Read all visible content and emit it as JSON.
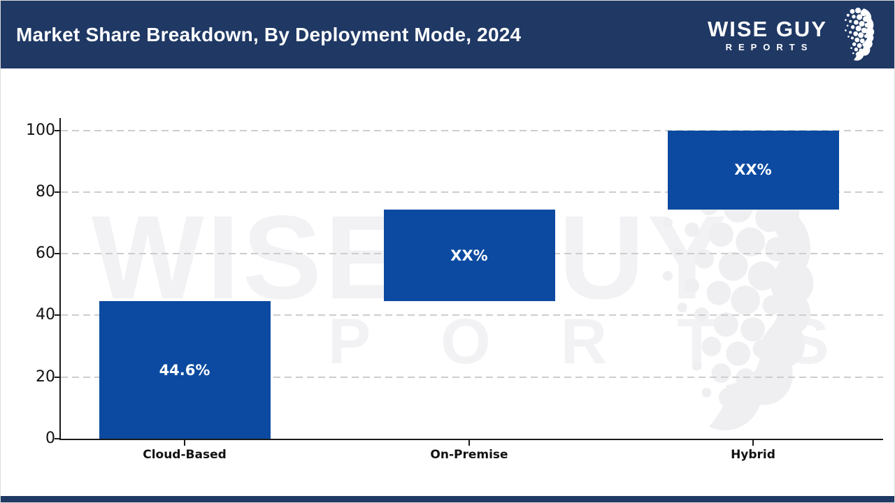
{
  "page": {
    "background": "#ffffff",
    "accent_navy": "#1f3864",
    "bar_blue": "#0b4aa0",
    "gridline_color": "#cdcdcd"
  },
  "header": {
    "title": "Market Share Breakdown, By Deployment Mode, 2024",
    "logo_line1": "WISE GUY",
    "logo_line2": "REPORTS"
  },
  "watermark": {
    "line1": "WISE GUY",
    "line2": "REPORTS"
  },
  "chart_data": {
    "type": "bar",
    "subtype": "floating_stacked_segments",
    "title": "Market Share Breakdown, By Deployment Mode, 2024",
    "categories": [
      "Cloud-Based",
      "On-Premise",
      "Hybrid"
    ],
    "bars": [
      {
        "category": "Cloud-Based",
        "start": 0,
        "end": 44.6,
        "label": "44.6%"
      },
      {
        "category": "On-Premise",
        "start": 44.6,
        "end": 74.2,
        "label": "XX%"
      },
      {
        "category": "Hybrid",
        "start": 74.2,
        "end": 100,
        "label": "XX%"
      }
    ],
    "xlabel": "",
    "ylabel": "",
    "ylim": [
      0,
      100
    ],
    "yticks": [
      0,
      20,
      40,
      60,
      80,
      100
    ],
    "grid": {
      "horizontal": true,
      "style": "dashed",
      "color": "#cdcdcd"
    },
    "legend": null,
    "bar_color": "#0b4aa0",
    "bar_label_color": "#ffffff"
  }
}
